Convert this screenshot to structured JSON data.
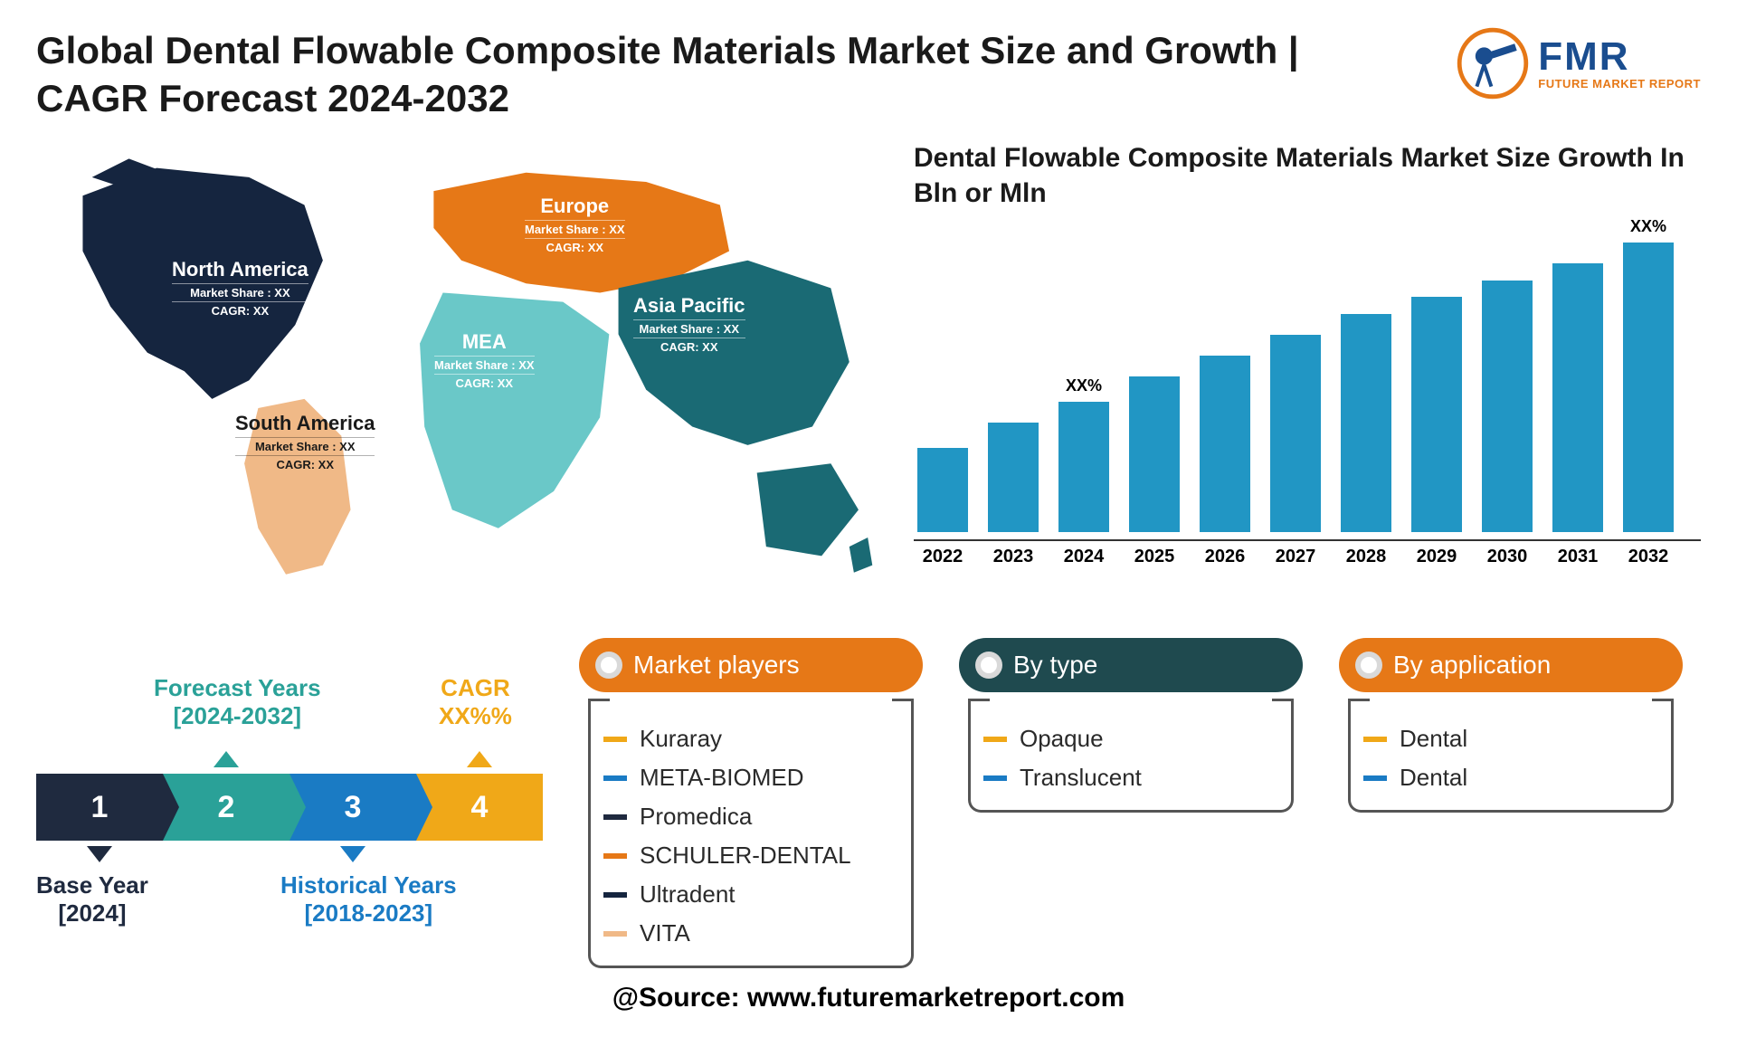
{
  "title": "Global Dental Flowable Composite Materials Market Size and Growth | CAGR Forecast 2024-2032",
  "logo": {
    "fmr": "FMR",
    "sub": "FUTURE MARKET REPORT"
  },
  "map": {
    "regions": [
      {
        "name": "North America",
        "share": "Market Share : XX",
        "cagr": "CAGR: XX",
        "color": "#15253f"
      },
      {
        "name": "South America",
        "share": "Market Share : XX",
        "cagr": "CAGR: XX",
        "color": "#f0b987"
      },
      {
        "name": "Europe",
        "share": "Market Share : XX",
        "cagr": "CAGR: XX",
        "color": "#e67817"
      },
      {
        "name": "MEA",
        "share": "Market Share : XX",
        "cagr": "CAGR: XX",
        "color": "#6ac8c8"
      },
      {
        "name": "Asia Pacific",
        "share": "Market Share : XX",
        "cagr": "CAGR: XX",
        "color": "#1a6a74"
      }
    ]
  },
  "chart": {
    "title": "Dental Flowable Composite Materials Market Size Growth In\nBln or Mln",
    "type": "bar",
    "years": [
      "2022",
      "2023",
      "2024",
      "2025",
      "2026",
      "2027",
      "2028",
      "2029",
      "2030",
      "2031",
      "2032"
    ],
    "values": [
      100,
      130,
      155,
      185,
      210,
      235,
      260,
      280,
      300,
      320,
      345
    ],
    "max": 345,
    "bar_color": "#2196c4",
    "annotations": [
      {
        "index": 2,
        "text": "XX%"
      },
      {
        "index": 10,
        "text": "XX%"
      }
    ]
  },
  "timeline": {
    "segments": [
      {
        "num": "1",
        "bg": "#1f2a3f"
      },
      {
        "num": "2",
        "bg": "#2aa198"
      },
      {
        "num": "3",
        "bg": "#1a7bc4"
      },
      {
        "num": "4",
        "bg": "#f0a818"
      }
    ],
    "labels": {
      "base": {
        "line1": "Base Year",
        "line2": "[2024]",
        "color": "#1f2a3f"
      },
      "forecast": {
        "line1": "Forecast Years",
        "line2": "[2024-2032]",
        "color": "#2aa198"
      },
      "historical": {
        "line1": "Historical Years",
        "line2": "[2018-2023]",
        "color": "#1a7bc4"
      },
      "cagr": {
        "line1": "CAGR",
        "line2": "XX%%",
        "color": "#f0a818"
      }
    }
  },
  "pills": [
    {
      "heading": "Market players",
      "bg": "#e67817",
      "items": [
        {
          "label": "Kuraray",
          "color": "#f0a818"
        },
        {
          "label": "META-BIOMED",
          "color": "#1a7bc4"
        },
        {
          "label": "Promedica",
          "color": "#1f2a3f"
        },
        {
          "label": "SCHULER-DENTAL",
          "color": "#e67817"
        },
        {
          "label": "Ultradent",
          "color": "#15253f"
        },
        {
          "label": "VITA",
          "color": "#f0b987"
        }
      ]
    },
    {
      "heading": "By type",
      "bg": "#1f4a4f",
      "items": [
        {
          "label": "Opaque",
          "color": "#f0a818"
        },
        {
          "label": "Translucent",
          "color": "#1a7bc4"
        }
      ]
    },
    {
      "heading": "By application",
      "bg": "#e67817",
      "items": [
        {
          "label": "Dental",
          "color": "#f0a818"
        },
        {
          "label": "Dental",
          "color": "#1a7bc4"
        }
      ]
    }
  ],
  "source": "@Source: www.futuremarketreport.com"
}
